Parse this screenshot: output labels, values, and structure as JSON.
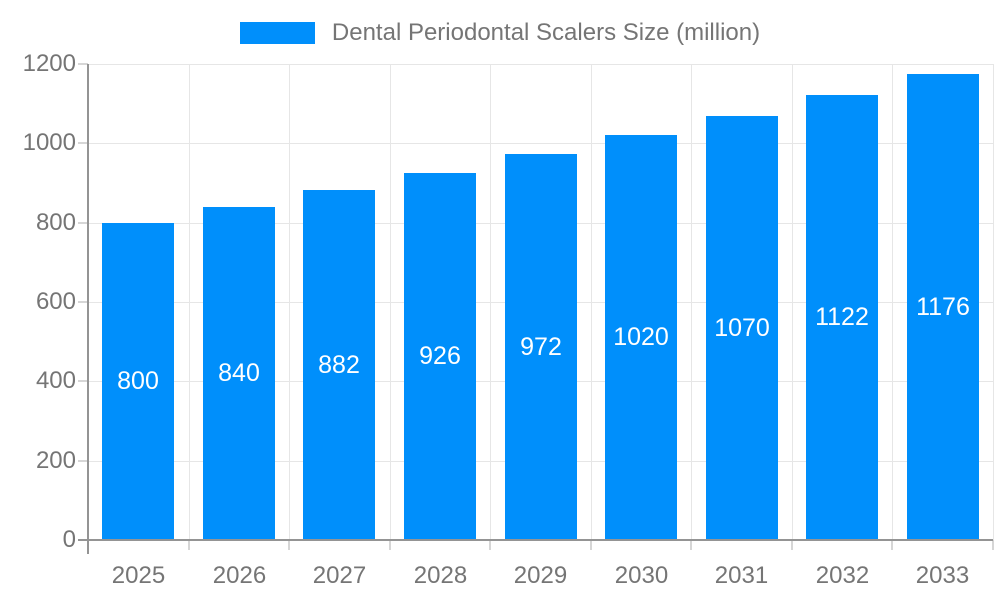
{
  "legend": {
    "label": "Dental Periodontal Scalers Size (million)"
  },
  "chart_data": {
    "type": "bar",
    "title": "Dental Periodontal Scalers Size (million)",
    "categories": [
      "2025",
      "2026",
      "2027",
      "2028",
      "2029",
      "2030",
      "2031",
      "2032",
      "2033"
    ],
    "values": [
      800,
      840,
      882,
      926,
      972,
      1020,
      1070,
      1122,
      1176
    ],
    "series": [
      {
        "name": "Dental Periodontal Scalers Size (million)",
        "values": [
          800,
          840,
          882,
          926,
          972,
          1020,
          1070,
          1122,
          1176
        ]
      }
    ],
    "xlabel": "",
    "ylabel": "",
    "ylim": [
      0,
      1200
    ],
    "yticks": [
      0,
      200,
      400,
      600,
      800,
      1000,
      1200
    ],
    "grid": true,
    "legend_position": "top",
    "value_labels": "inside-center-white"
  },
  "colors": {
    "bar": "#008FFB",
    "grid": "#e6e6e6",
    "axis": "#949494",
    "tick": "#d6d6d6",
    "label_text": "#757575",
    "value_text": "#ffffff",
    "background": "#ffffff"
  }
}
